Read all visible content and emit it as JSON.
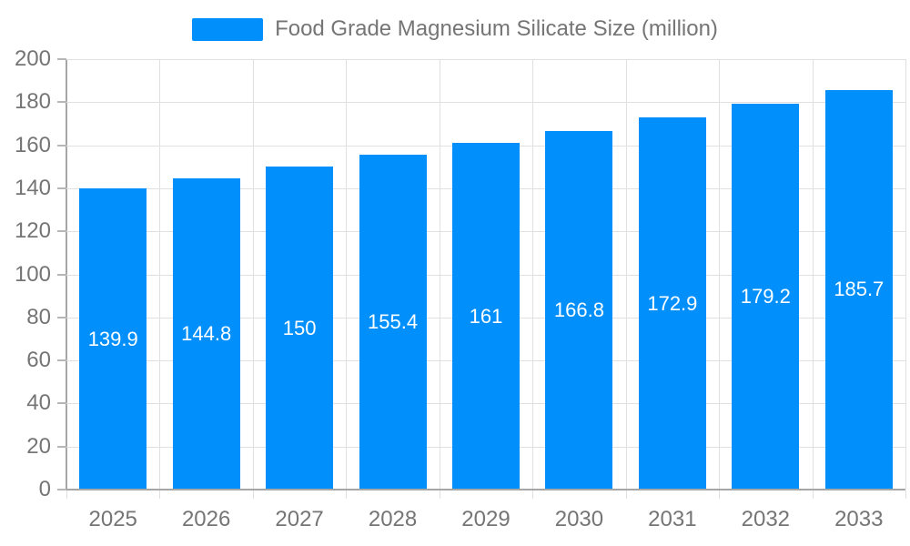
{
  "legend": {
    "label": "Food Grade Magnesium Silicate Size (million)"
  },
  "chart_data": {
    "type": "bar",
    "title": "Food Grade Magnesium Silicate Size (million)",
    "categories": [
      "2025",
      "2026",
      "2027",
      "2028",
      "2029",
      "2030",
      "2031",
      "2032",
      "2033"
    ],
    "values": [
      139.9,
      144.8,
      150,
      155.4,
      161,
      166.8,
      172.9,
      179.2,
      185.7
    ],
    "value_labels": [
      "139.9",
      "144.8",
      "150",
      "155.4",
      "161",
      "166.8",
      "172.9",
      "179.2",
      "185.7"
    ],
    "xlabel": "",
    "ylabel": "",
    "ylim": [
      0,
      200
    ],
    "ytick_step": 20,
    "ytick_labels": [
      "0",
      "20",
      "40",
      "60",
      "80",
      "100",
      "120",
      "140",
      "160",
      "180",
      "200"
    ],
    "grid": true,
    "legend_position": "top"
  },
  "colors": {
    "bar": "#008FFB",
    "grid": "#e0e0e0",
    "axis": "#a6a6a6",
    "tick": "#b6b6b6",
    "axis_label": "#757575",
    "value_label": "#ffffff",
    "legend_label": "#757575",
    "background": "#ffffff"
  }
}
